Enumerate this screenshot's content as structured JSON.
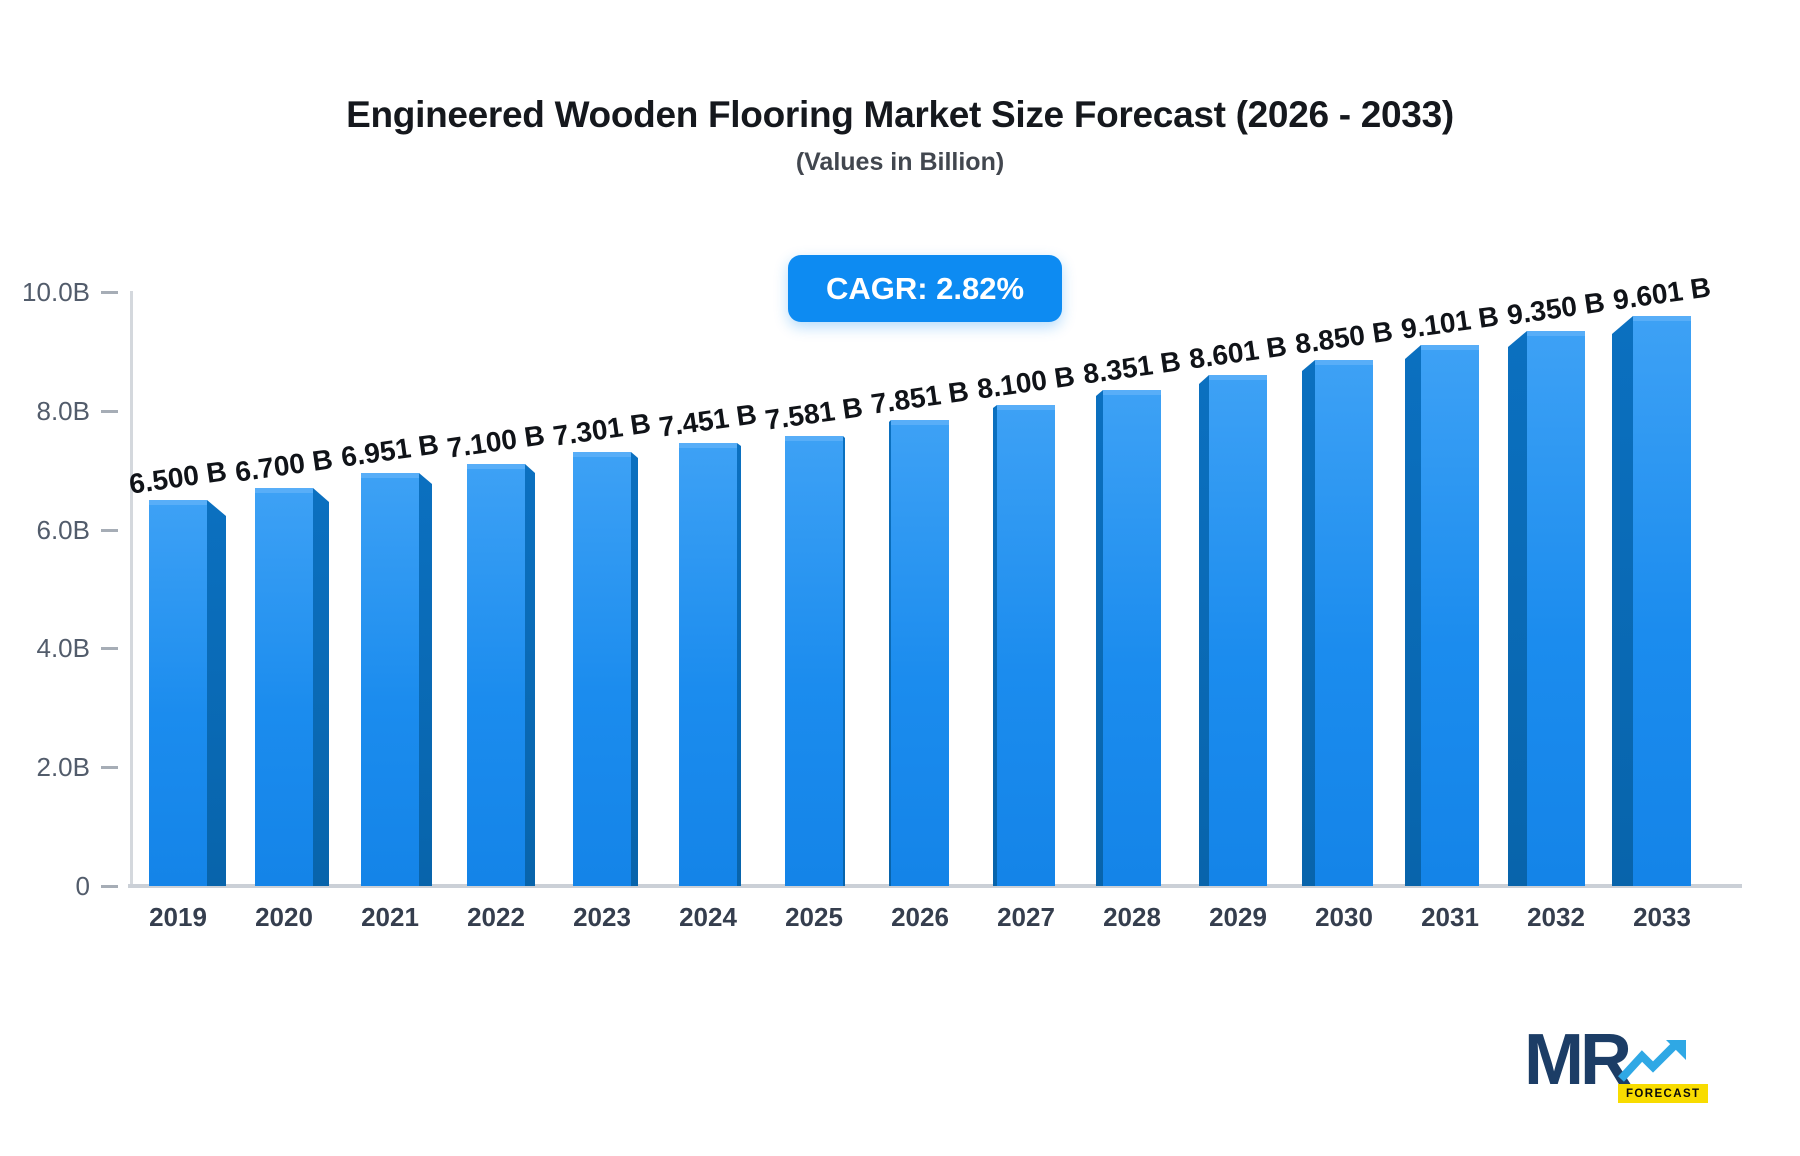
{
  "title": "Engineered Wooden Flooring Market Size Forecast (2026 - 2033)",
  "subtitle": "(Values in Billion)",
  "badge": {
    "label": "CAGR: 2.82%"
  },
  "chart_data": {
    "type": "bar",
    "categories": [
      "2019",
      "2020",
      "2021",
      "2022",
      "2023",
      "2024",
      "2025",
      "2026",
      "2027",
      "2028",
      "2029",
      "2030",
      "2031",
      "2032",
      "2033"
    ],
    "values": [
      6.5,
      6.7,
      6.951,
      7.1,
      7.301,
      7.451,
      7.581,
      7.851,
      8.1,
      8.351,
      8.601,
      8.85,
      9.101,
      9.35,
      9.601
    ],
    "value_labels": [
      "6.500 B",
      "6.700 B",
      "6.951 B",
      "7.100 B",
      "7.301 B",
      "7.451 B",
      "7.581 B",
      "7.851 B",
      "8.100 B",
      "8.351 B",
      "8.601 B",
      "8.850 B",
      "9.101 B",
      "9.350 B",
      "9.601 B"
    ],
    "title": "Engineered Wooden Flooring Market Size Forecast (2026 - 2033)",
    "subtitle": "(Values in Billion)",
    "xlabel": "",
    "ylabel": "",
    "ylim": [
      0,
      10
    ],
    "yticks": [
      {
        "label": "10.0B",
        "value": 10
      },
      {
        "label": "8.0B",
        "value": 8
      },
      {
        "label": "6.0B",
        "value": 6
      },
      {
        "label": "4.0B",
        "value": 4
      },
      {
        "label": "2.0B",
        "value": 2
      },
      {
        "label": "0",
        "value": 0
      }
    ],
    "grid": false,
    "legend": null,
    "bar_style": "3d-perspective"
  },
  "logo": {
    "mr": "MR",
    "forecast": "FORECAST"
  },
  "colors": {
    "badge_bg": "#0d8bf2",
    "bar_top_edge": "#58aef8",
    "bar_face_top": "#3da1f5",
    "bar_face_mid": "#1b8cee",
    "bar_face_bottom": "#1484e8",
    "bar_side_top": "#0b70c0",
    "bar_side_bottom": "#0864ab",
    "logo_navy": "#1c3d66",
    "logo_blue": "#2fa8e5",
    "logo_yellow": "#f8dc00"
  }
}
